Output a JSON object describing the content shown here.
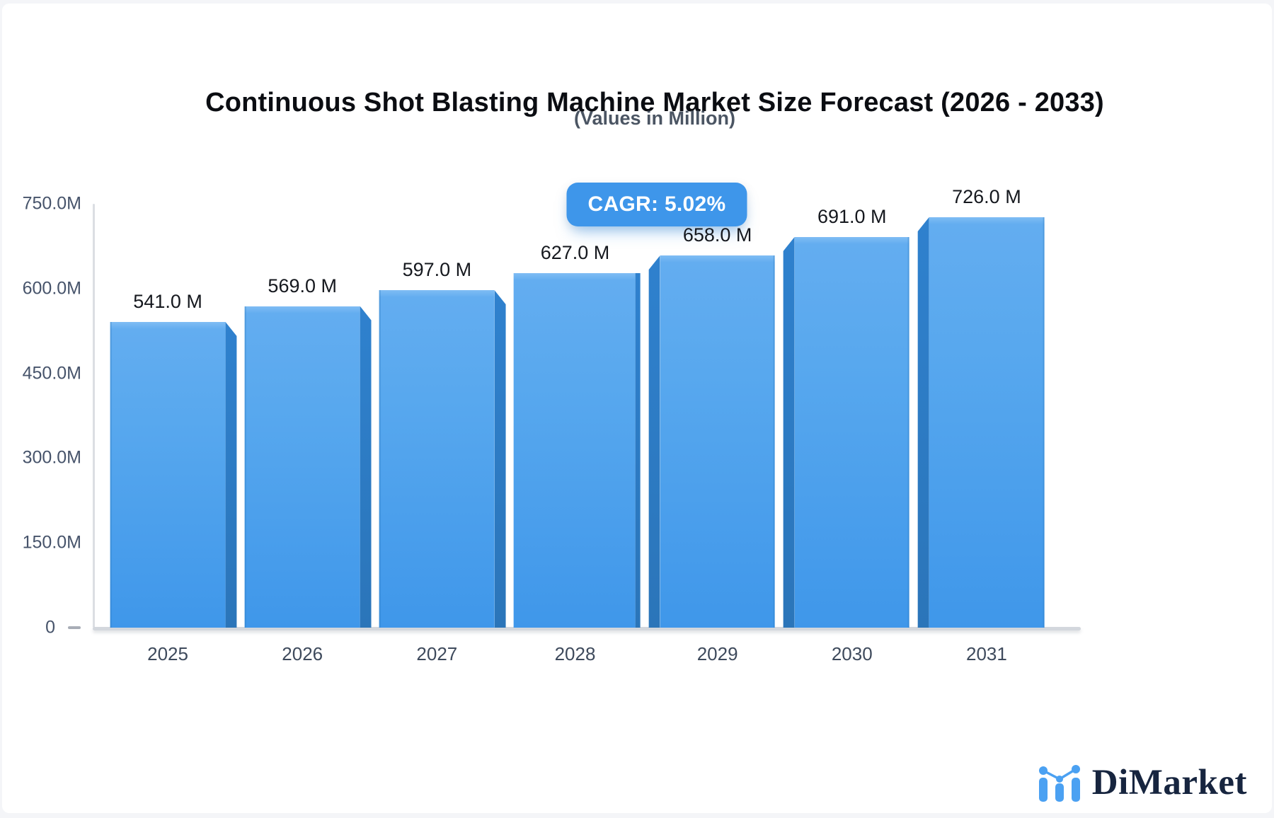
{
  "chart_data": {
    "type": "bar",
    "title": "Continuous Shot Blasting Machine Market Size Forecast (2026 - 2033)",
    "subtitle": "(Values in Million)",
    "annotation": "CAGR: 5.02%",
    "categories": [
      "2025",
      "2026",
      "2027",
      "2028",
      "2029",
      "2030",
      "2031"
    ],
    "values": [
      541,
      569,
      597,
      627,
      658,
      691,
      726
    ],
    "value_labels": [
      "541.0 M",
      "569.0 M",
      "597.0 M",
      "627.0 M",
      "658.0 M",
      "691.0 M",
      "726.0 M"
    ],
    "ylim": [
      0,
      750
    ],
    "y_ticks": [
      {
        "label": "750.0M",
        "value": 750
      },
      {
        "label": "600.0M",
        "value": 600
      },
      {
        "label": "450.0M",
        "value": 450
      },
      {
        "label": "300.0M",
        "value": 300
      },
      {
        "label": "150.0M",
        "value": 150
      },
      {
        "label": "0",
        "value": 0
      }
    ],
    "grid": false,
    "legend": false,
    "colors": {
      "bar_face": "#58a8ee",
      "bar_face_top": "#7fbdf4",
      "bar_face_bottom": "#3f97ea",
      "bar_bevel": "#2f81ce",
      "badge_bg": "#3e96ea",
      "axis_line": "#dbdee3"
    }
  },
  "logo": {
    "text": "DiMarket",
    "icon": "dimarket-bars-icon",
    "blue": "#4ba1f2",
    "navy": "#17253f"
  }
}
